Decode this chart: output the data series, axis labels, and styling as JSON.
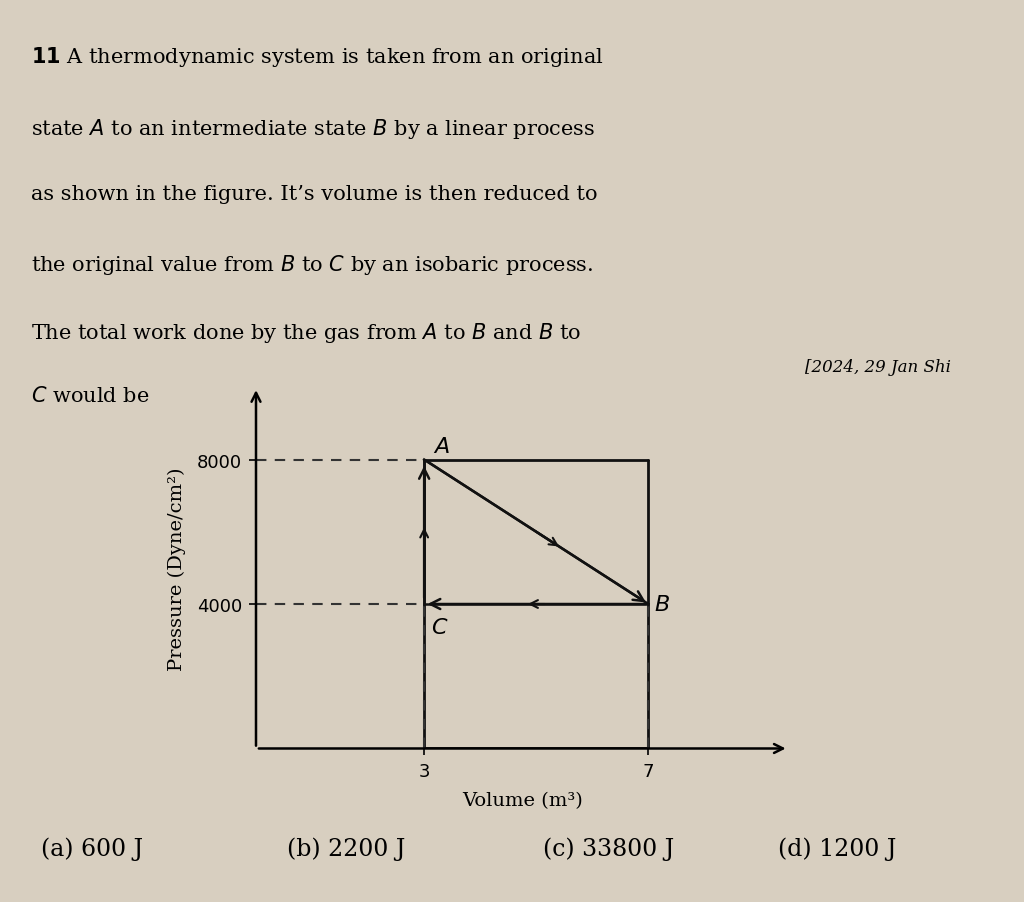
{
  "point_A": [
    3,
    8000
  ],
  "point_B": [
    7,
    4000
  ],
  "point_C": [
    3,
    4000
  ],
  "xlabel": "Volume (m³)",
  "ylabel": "Pressure (Dyne/cm²)",
  "yticks": [
    4000,
    8000
  ],
  "xticks": [
    3,
    7
  ],
  "xlim": [
    0,
    9.5
  ],
  "ylim": [
    0,
    10000
  ],
  "citation": "[2024, 29 Jan Shi",
  "options": [
    "(a) 600 J",
    "(b) 2200 J",
    "(c) 33800 J",
    "(d) 1200 J"
  ],
  "bg_color": "#d8cfc0",
  "line_color": "#111111",
  "dashed_color": "#333333",
  "text_lines": [
    "11 A thermodynamic system is taken from an original",
    "state $A$ to an intermediate state $B$ by a linear process",
    "as shown in the figure. It’s volume is then reduced to",
    "the original value from $B$ to $C$ by an isobaric process.",
    "The total work done by the gas from $A$ to $B$ and $B$ to",
    "$C$ would be"
  ],
  "text_fontsize": 15,
  "label_fontsize": 14,
  "axis_label_fontsize": 13,
  "tick_fontsize": 13,
  "option_fontsize": 17
}
